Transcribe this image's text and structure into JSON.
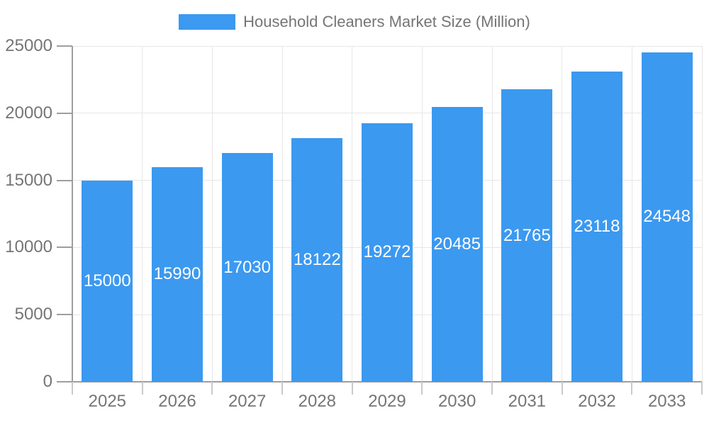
{
  "legend": {
    "label": "Household Cleaners Market Size (Million)"
  },
  "chart_data": {
    "type": "bar",
    "title": "",
    "xlabel": "",
    "ylabel": "",
    "categories": [
      "2025",
      "2026",
      "2027",
      "2028",
      "2029",
      "2030",
      "2031",
      "2032",
      "2033"
    ],
    "series": [
      {
        "name": "Household Cleaners Market Size (Million)",
        "values": [
          15000,
          15990,
          17030,
          18122,
          19272,
          20485,
          21765,
          23118,
          24548
        ]
      }
    ],
    "value_labels": "inside-center",
    "ylim": [
      0,
      25000
    ],
    "yticks": [
      0,
      5000,
      10000,
      15000,
      20000,
      25000
    ],
    "grid": true,
    "legend_position": "top-center",
    "colors": {
      "bar": "#3b99f0",
      "grid": "#e6e6e6",
      "axis": "#9e9e9e",
      "x_tick": "#c9c9c9",
      "text": "#757575",
      "value_label": "#ffffff",
      "background": "#ffffff"
    }
  }
}
